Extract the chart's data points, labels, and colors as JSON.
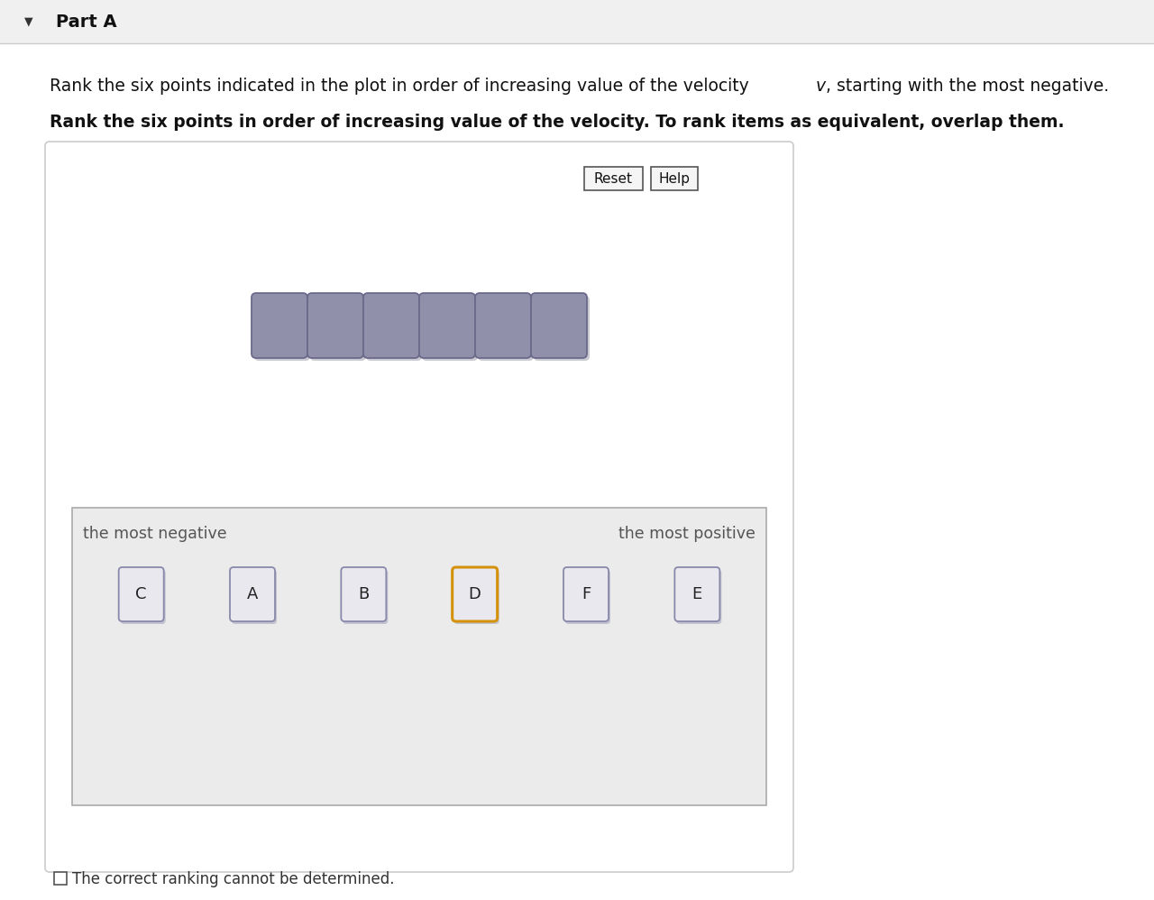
{
  "title": "Part A",
  "title_arrow": "▼",
  "slot_count": 6,
  "slot_fill": "#9090aa",
  "slot_border": "#6a6a8a",
  "bottom_label_left": "the most negative",
  "bottom_label_right": "the most positive",
  "items": [
    "C",
    "A",
    "B",
    "D",
    "F",
    "E"
  ],
  "item_highlighted": "D",
  "item_highlight_color": "#d4920a",
  "item_bg_top": "#e8e8ee",
  "item_bg_bot": "#d0d0dc",
  "item_border_normal": "#8888aa",
  "item_shadow": "#9090b0",
  "checkbox_text": "The correct ranking cannot be determined.",
  "page_bg": "#f0f0f0",
  "header_bg": "#f0f0f0",
  "header_border": "#cccccc",
  "outer_box_bg": "#ffffff",
  "outer_box_border": "#cccccc",
  "inner_box_bg": "#ebebeb",
  "inner_box_border": "#aaaaaa",
  "btn_bg": "#f5f5f5",
  "btn_border": "#555555"
}
